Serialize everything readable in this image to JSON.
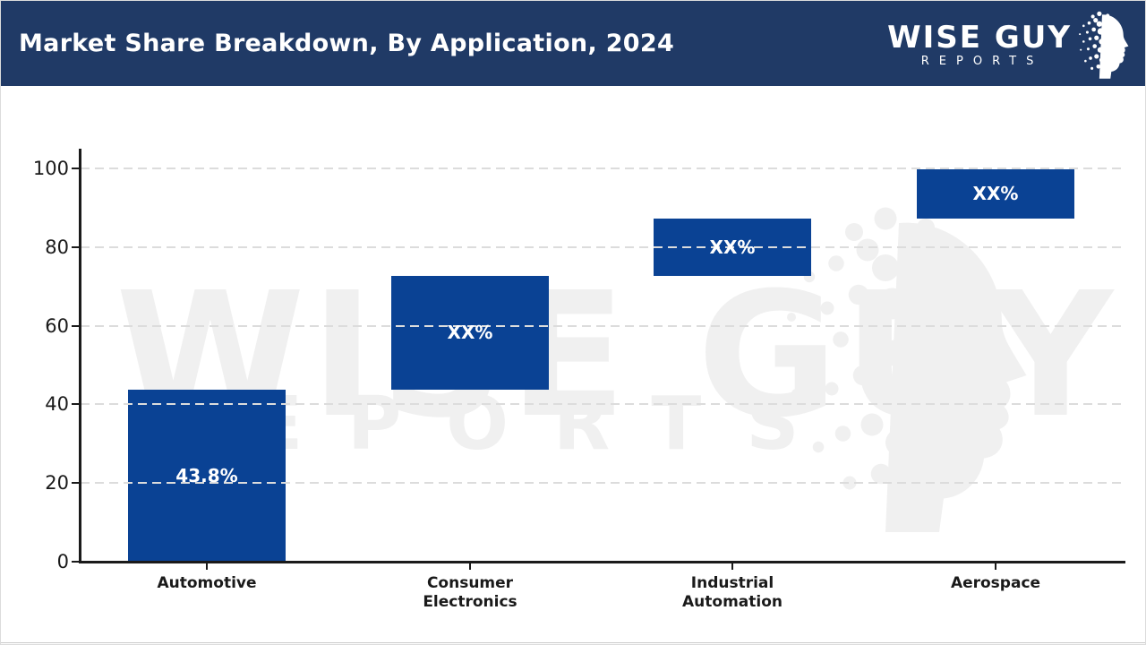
{
  "page": {
    "background": "#ffffff",
    "border_color": "#dcdcdc"
  },
  "header": {
    "title": "Market Share Breakdown, By Application, 2024",
    "bg_color": "#203a66",
    "text_color": "#ffffff",
    "logo": {
      "line1": "WISE GUY",
      "line2": "REPORTS"
    }
  },
  "watermark": {
    "line1": "WISE GUY",
    "line2": "REPORTS",
    "color": "#f0f0f0"
  },
  "chart_data": {
    "type": "bar",
    "subtype": "waterfall-floating-bars",
    "title": "Market Share Breakdown, By Application, 2024",
    "categories": [
      "Automotive",
      "Consumer Electronics",
      "Industrial Automation",
      "Aerospace"
    ],
    "category_lines": [
      [
        "Automotive"
      ],
      [
        "Consumer",
        "Electronics"
      ],
      [
        "Industrial",
        "Automation"
      ],
      [
        "Aerospace"
      ]
    ],
    "series": [
      {
        "name": "Automotive",
        "start": 0,
        "end": 43.8,
        "value": 43.8,
        "label": "43.8%"
      },
      {
        "name": "Consumer Electronics",
        "start": 43.8,
        "end": 72.7,
        "value": 28.9,
        "label": "XX%"
      },
      {
        "name": "Industrial Automation",
        "start": 72.7,
        "end": 87.3,
        "value": 14.6,
        "label": "XX%"
      },
      {
        "name": "Aerospace",
        "start": 87.3,
        "end": 99.8,
        "value": 12.5,
        "label": "XX%"
      }
    ],
    "xlabel": "",
    "ylabel": "",
    "y_ticks": [
      0,
      20,
      40,
      60,
      80,
      100
    ],
    "ylim": [
      0,
      105
    ],
    "grid": "horizontal dashed gridlines, drawn over bars",
    "legend": "none",
    "bar_color": "#0a4294",
    "bar_label_color": "#ffffff",
    "axis_color": "#1a1a1a",
    "tick_label_color": "#1a1a1a",
    "gridline_color": "#dcdcdc"
  }
}
